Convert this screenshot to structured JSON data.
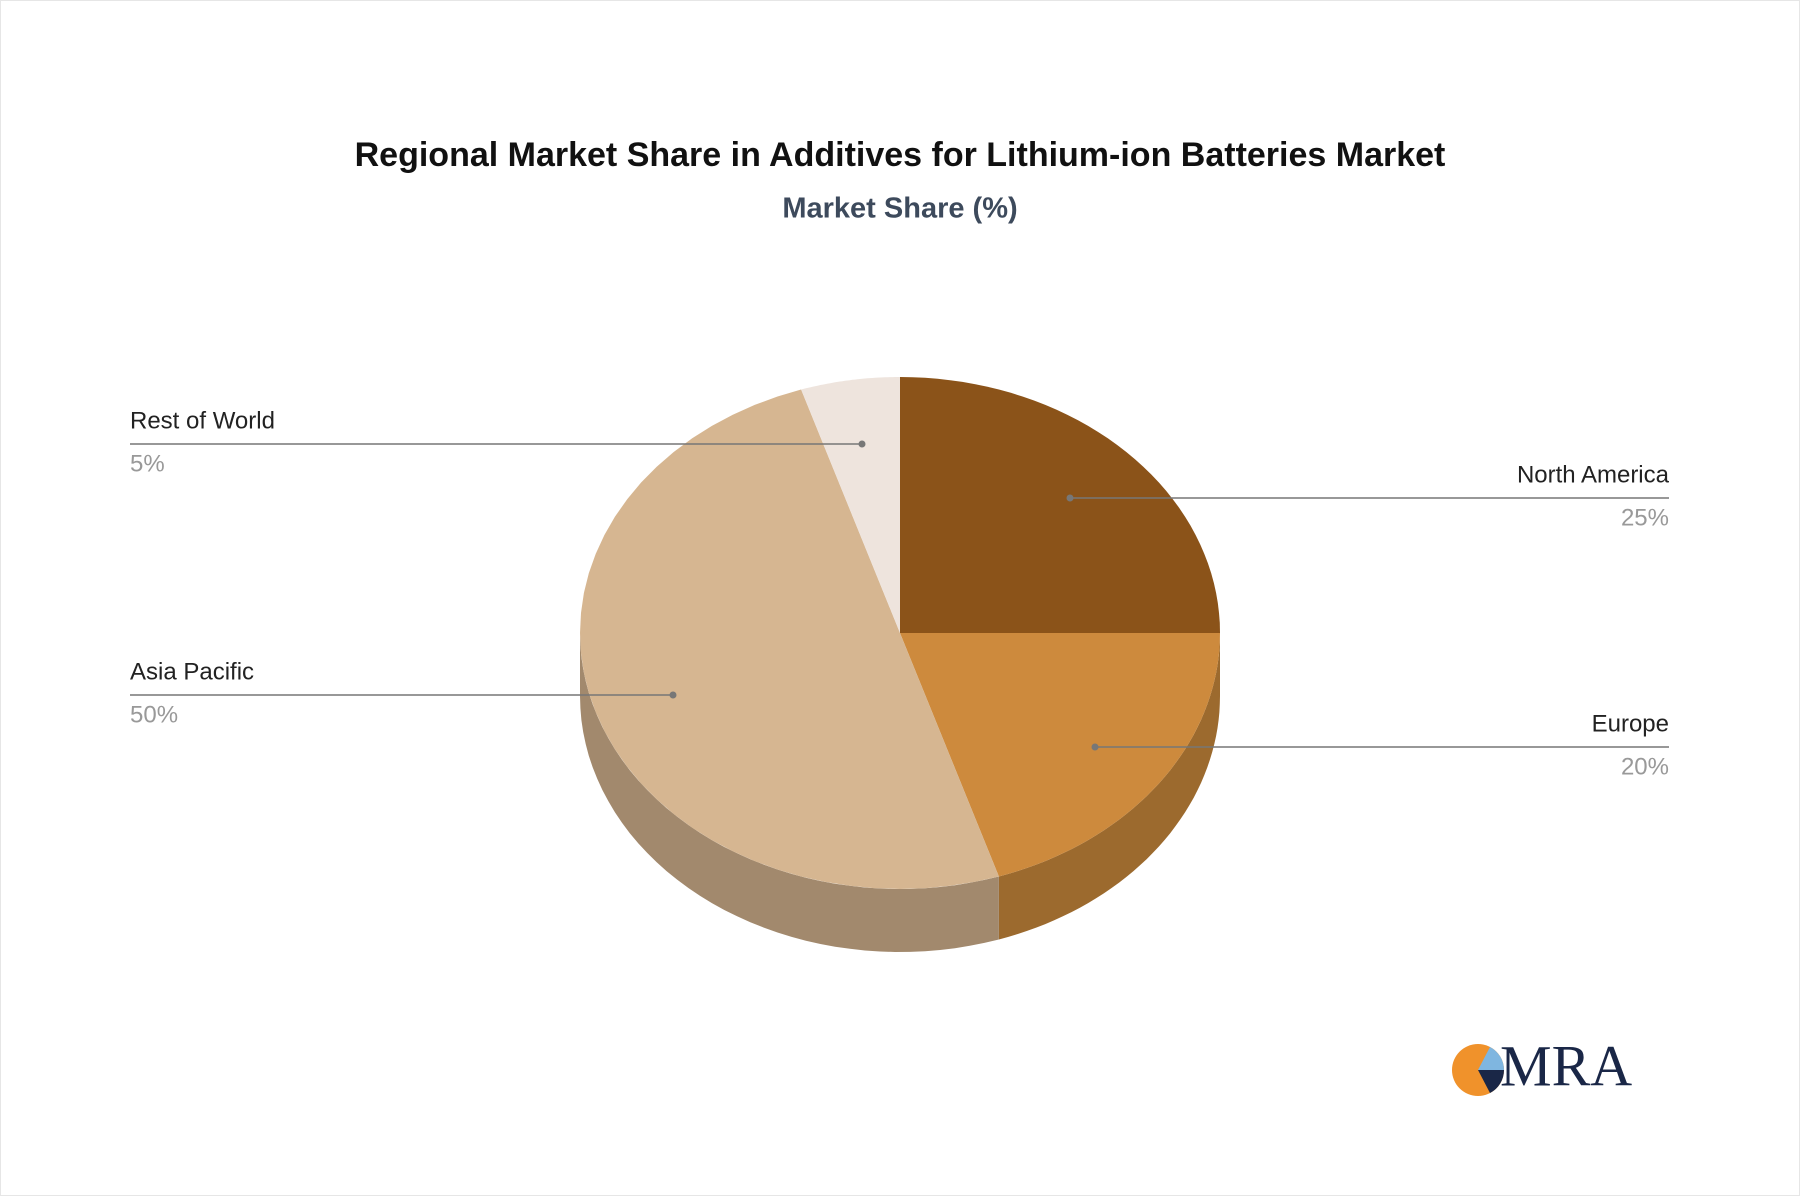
{
  "chart_data": {
    "type": "pie3d",
    "title": "Regional Market Share in Additives for Lithium-ion Batteries Market",
    "subtitle": "Market Share (%)",
    "categories": [
      "North America",
      "Europe",
      "Asia Pacific",
      "Rest of World"
    ],
    "values": [
      25,
      20,
      50,
      5
    ],
    "value_labels": [
      "25%",
      "20%",
      "50%",
      "5%"
    ],
    "colors": [
      "#8b5319",
      "#cd8a3d",
      "#d6b691",
      "#eee4dd"
    ],
    "side_colors": [
      "#6e4213",
      "#9c6a2e",
      "#a2896d",
      "#c4b8ae"
    ]
  },
  "logo": "MRA"
}
